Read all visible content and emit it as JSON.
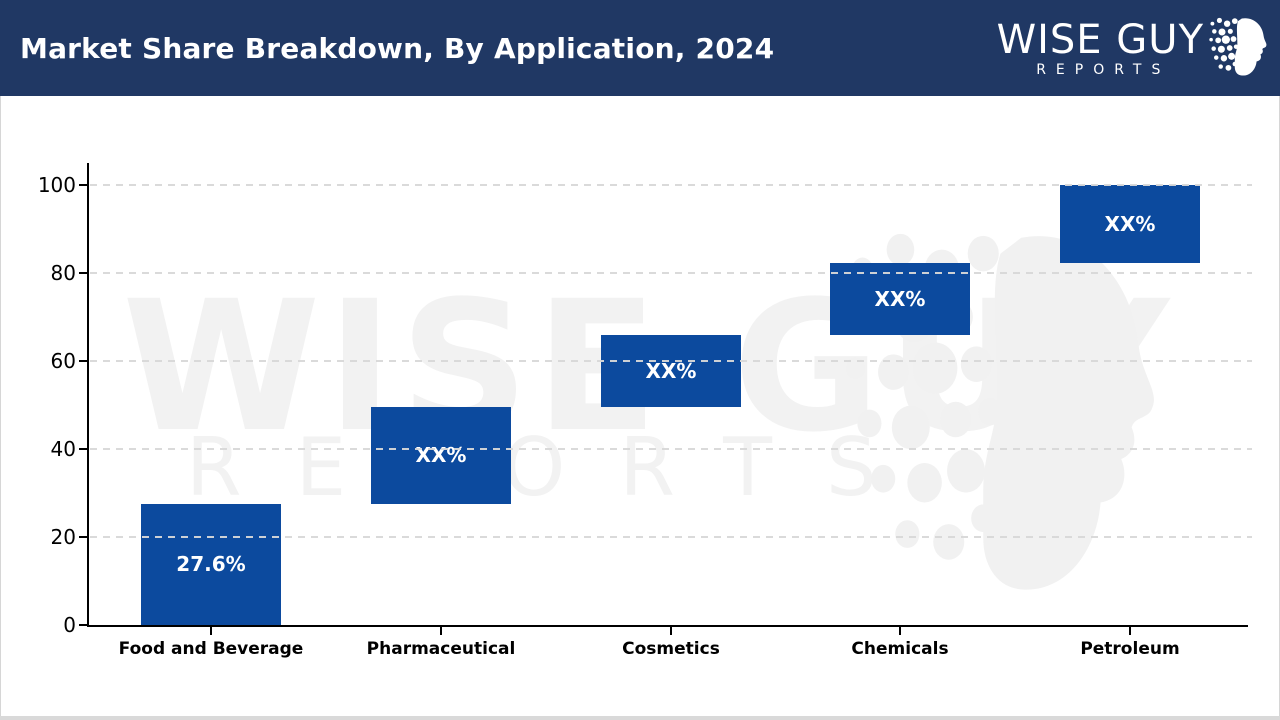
{
  "header": {
    "title": "Market Share Breakdown, By Application, 2024",
    "logo": {
      "line1": "WISE GUY",
      "line2": "REPORTS"
    }
  },
  "watermark": {
    "line1": "WISE GUY",
    "line2": "REPORTS"
  },
  "colors": {
    "header_bg": "#203864",
    "bar": "#0c4a9e",
    "gridline": "#d9d9d9",
    "bar_label": "#ffffff",
    "axis_text": "#000000",
    "watermark": "#f2f2f2"
  },
  "chart_data": {
    "type": "bar",
    "subtype": "waterfall",
    "title": "Market Share Breakdown, By Application, 2024",
    "categories": [
      "Food and Beverage",
      "Pharmaceutical",
      "Cosmetics",
      "Chemicals",
      "Petroleum"
    ],
    "segments": [
      {
        "category": "Food and Beverage",
        "start": 0,
        "end": 27.6,
        "label": "27.6%"
      },
      {
        "category": "Pharmaceutical",
        "start": 27.6,
        "end": 49.5,
        "label": "XX%"
      },
      {
        "category": "Cosmetics",
        "start": 49.5,
        "end": 66,
        "label": "XX%"
      },
      {
        "category": "Chemicals",
        "start": 66,
        "end": 82.3,
        "label": "XX%"
      },
      {
        "category": "Petroleum",
        "start": 82.3,
        "end": 100,
        "label": "XX%"
      }
    ],
    "y_ticks": [
      0,
      20,
      40,
      60,
      80,
      100
    ],
    "ylim": [
      0,
      105
    ],
    "xlabel": "",
    "ylabel": "",
    "grid": "horizontal-dashed",
    "legend": "none"
  }
}
